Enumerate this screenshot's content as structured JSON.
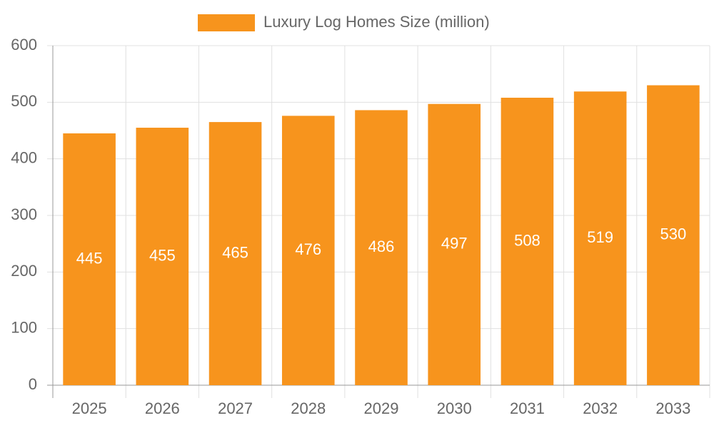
{
  "chart_data": {
    "type": "bar",
    "categories": [
      "2025",
      "2026",
      "2027",
      "2028",
      "2029",
      "2030",
      "2031",
      "2032",
      "2033"
    ],
    "series": [
      {
        "name": "Luxury Log Homes Size (million)",
        "color": "#f7941d",
        "values": [
          445,
          455,
          465,
          476,
          486,
          497,
          508,
          519,
          530
        ]
      }
    ],
    "ylim": [
      0,
      600
    ],
    "yticks": [
      0,
      100,
      200,
      300,
      400,
      500,
      600
    ],
    "grid": true,
    "legend": "top",
    "value_labels_position": "center"
  }
}
